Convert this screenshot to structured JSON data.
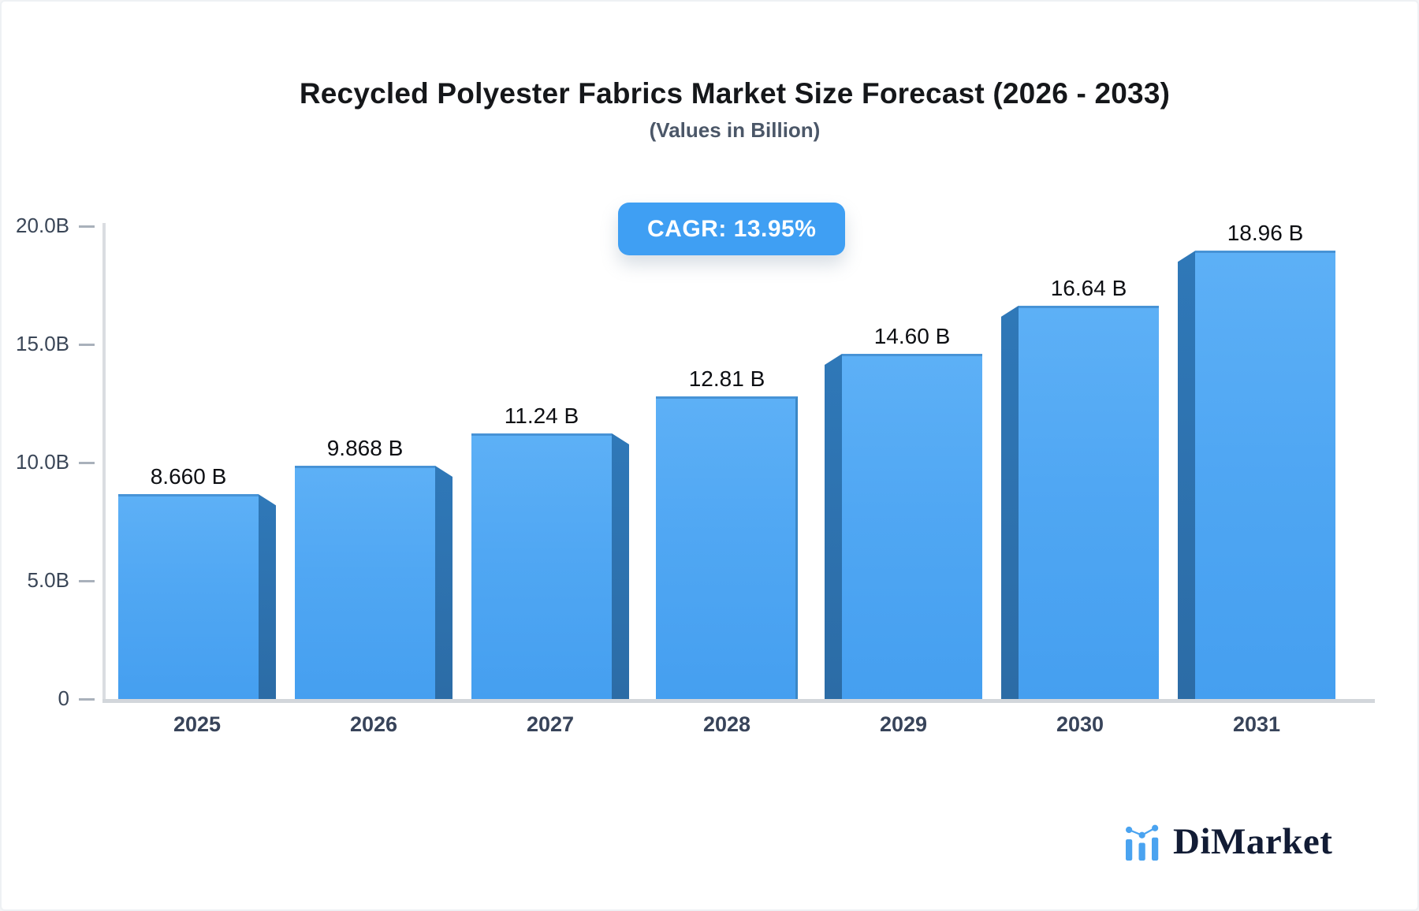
{
  "title": "Recycled Polyester Fabrics Market Size Forecast (2026 - 2033)",
  "subtitle": "(Values in Billion)",
  "badge": {
    "label": "CAGR: 13.95%",
    "color": "#3f9ff3"
  },
  "brand": {
    "name": "DiMarket",
    "icon": "bar-chart-with-dots",
    "icon_color": "#4aa3f0",
    "text_color": "#121c35"
  },
  "chart_data": {
    "type": "bar",
    "title": "Recycled Polyester Fabrics Market Size Forecast (2026 - 2033)",
    "subtitle": "(Values in Billion)",
    "categories": [
      "2025",
      "2026",
      "2027",
      "2028",
      "2029",
      "2030",
      "2031"
    ],
    "values": [
      8.66,
      9.868,
      11.24,
      12.81,
      14.6,
      16.64,
      18.96
    ],
    "value_labels": [
      "8.660 B",
      "9.868 B",
      "11.24 B",
      "12.81 B",
      "14.60 B",
      "16.64 B",
      "18.96 B"
    ],
    "xlabel": "",
    "ylabel": "",
    "ylim": [
      0,
      20
    ],
    "yticks": [
      {
        "value": 0,
        "label": "0"
      },
      {
        "value": 5,
        "label": "5.0B"
      },
      {
        "value": 10,
        "label": "10.0B"
      },
      {
        "value": 15,
        "label": "15.0B"
      },
      {
        "value": 20,
        "label": "20.0B"
      }
    ],
    "grid": false,
    "legend": false,
    "bar_color_top": "#5db0f6",
    "bar_color_bottom": "#459ff0",
    "bar_side_color": "#2d73b1",
    "axis_line_color": "#d2d6db",
    "effect": "3d-perspective-center"
  }
}
